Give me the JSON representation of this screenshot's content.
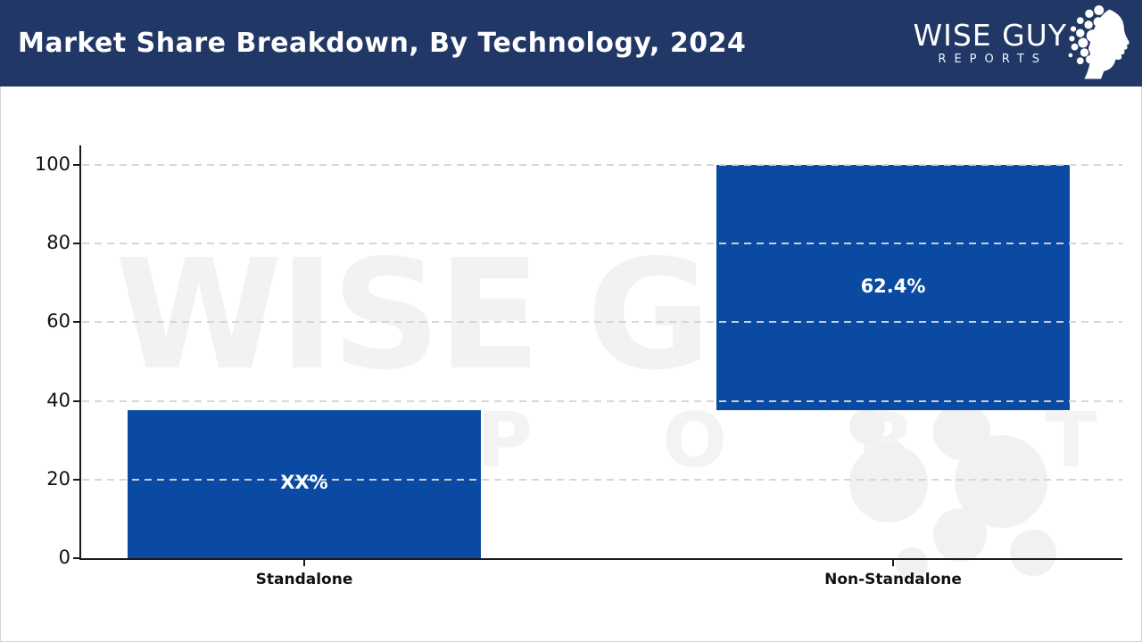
{
  "header": {
    "title": "Market Share Breakdown, By Technology, 2024"
  },
  "logo": {
    "line1": "WISE GUY",
    "line2": "REPORTS",
    "head_icon": "dotted-head-profile"
  },
  "watermark": {
    "line1": "WISE GU",
    "line2": "E P O R T S"
  },
  "colors": {
    "header_bg": "#213765",
    "bar": "#0b4aa2",
    "grid": "#d5d5d5",
    "axis": "#1a1a1a",
    "label_on_bar": "#ffffff"
  },
  "chart_data": {
    "type": "bar",
    "title": "Market Share Breakdown, By Technology, 2024",
    "categories": [
      "Standalone",
      "Non-Standalone"
    ],
    "bars": [
      {
        "category": "Standalone",
        "base": 0,
        "top": 37.6,
        "label": "XX%"
      },
      {
        "category": "Non-Standalone",
        "base": 37.6,
        "top": 100,
        "label": "62.4%"
      }
    ],
    "series_note": "waterfall-style: second bar starts where first ends; labels show share of total",
    "yticks": [
      0,
      20,
      40,
      60,
      80,
      100
    ],
    "ytick_labels": [
      "0",
      "20",
      "40",
      "60",
      "80",
      "100"
    ],
    "ylim": [
      0,
      105
    ],
    "xlabel": "",
    "ylabel": "",
    "grid": "horizontal dashed, drawn over bars",
    "legend": "none"
  }
}
